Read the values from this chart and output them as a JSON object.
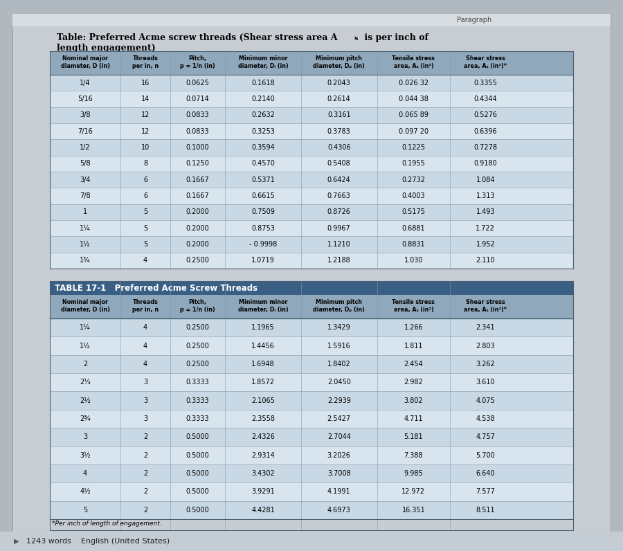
{
  "title1_line1": "Table: Preferred Acme screw threads (Shear stress area A",
  "title1_sub": "s",
  "title1_line2": " is per inch of",
  "title1_line3": "length engagement)",
  "table1_headers": [
    "Nominal major\ndiameter, D (in)",
    "Threads\nper in, n",
    "Pitch,\np = 1/n (in)",
    "Minimum minor\ndiameter, Dᵢ (in)",
    "Minimum pitch\ndiameter, Dₚ (in)",
    "Tensile stress\narea, Aₛ (in²)",
    "Shear stress\narea, Aₛ (in²)*"
  ],
  "table1_data": [
    [
      "1/4",
      "16",
      "0.0625",
      "0.1618",
      "0.2043",
      "0.026 32",
      "0.3355"
    ],
    [
      "5/16",
      "14",
      "0.0714",
      "0.2140",
      "0.2614",
      "0.044 38",
      "0.4344"
    ],
    [
      "3/8",
      "12",
      "0.0833",
      "0.2632",
      "0.3161",
      "0.065 89",
      "0.5276"
    ],
    [
      "7/16",
      "12",
      "0.0833",
      "0.3253",
      "0.3783",
      "0.097 20",
      "0.6396"
    ],
    [
      "1/2",
      "10",
      "0.1000",
      "0.3594",
      "0.4306",
      "0.1225",
      "0.7278"
    ],
    [
      "5/8",
      "8",
      "0.1250",
      "0.4570",
      "0.5408",
      "0.1955",
      "0.9180"
    ],
    [
      "3/4",
      "6",
      "0.1667",
      "0.5371",
      "0.6424",
      "0.2732",
      "1.084"
    ],
    [
      "7/8",
      "6",
      "0.1667",
      "0.6615",
      "0.7663",
      "0.4003",
      "1.313"
    ],
    [
      "1",
      "5",
      "0.2000",
      "0.7509",
      "0.8726",
      "0.5175",
      "1.493"
    ],
    [
      "1¼",
      "5",
      "0.2000",
      "0.8753",
      "0.9967",
      "0.6881",
      "1.722"
    ],
    [
      "1½",
      "5",
      "0.2000",
      "- 0.9998",
      "1.1210",
      "0.8831",
      "1.952"
    ],
    [
      "1¾",
      "4",
      "0.2500",
      "1.0719",
      "1.2188",
      "1.030",
      "2.110"
    ]
  ],
  "title2": "TABLE 17-1   Preferred Acme Screw Threads",
  "table2_headers": [
    "Nominal major\ndiameter, D (in)",
    "Threads\nper in, n",
    "Pitch,\np = 1/n (in)",
    "Minimum minor\ndiameter, Dᵢ (in)",
    "Minimum pitch\ndiameter, Dₚ (in)",
    "Tensile stress\narea, Aₛ (in²)",
    "Shear stress\narea, Aₛ (in²)*"
  ],
  "table2_data": [
    [
      "1¼",
      "4",
      "0.2500",
      "1.1965",
      "1.3429",
      "1.266",
      "2.341"
    ],
    [
      "1½",
      "4",
      "0.2500",
      "1.4456",
      "1.5916",
      "1.811",
      "2.803"
    ],
    [
      "2",
      "4",
      "0.2500",
      "1.6948",
      "1.8402",
      "2.454",
      "3.262"
    ],
    [
      "2¼",
      "3",
      "0.3333",
      "1.8572",
      "2.0450",
      "2.982",
      "3.610"
    ],
    [
      "2½",
      "3",
      "0.3333",
      "2.1065",
      "2.2939",
      "3.802",
      "4.075"
    ],
    [
      "2¾",
      "3",
      "0.3333",
      "2.3558",
      "2.5427",
      "4.711",
      "4.538"
    ],
    [
      "3",
      "2",
      "0.5000",
      "2.4326",
      "2.7044",
      "5.181",
      "4.757"
    ],
    [
      "3½",
      "2",
      "0.5000",
      "2.9314",
      "3.2026",
      "7.388",
      "5.700"
    ],
    [
      "4",
      "2",
      "0.5000",
      "3.4302",
      "3.7008",
      "9.985",
      "6.640"
    ],
    [
      "4½",
      "2",
      "0.5000",
      "3.9291",
      "4.1991",
      "12.972",
      "7.577"
    ],
    [
      "5",
      "2",
      "0.5000",
      "4.4281",
      "4.6973",
      "16.351",
      "8.511"
    ]
  ],
  "footnote": "*Per inch of length of engagement.",
  "page_bg": "#b0b8c0",
  "doc_bg": "#c8cdd4",
  "table1_bg": "#cdd8e2",
  "table1_header_bg": "#8fa8bb",
  "table2_title_bg": "#3a5f85",
  "table2_header_bg": "#8fa8bb",
  "row_even": "#c8d8e4",
  "row_odd": "#d8e4ee",
  "border_dark": "#4a6070",
  "border_light": "#8899aa",
  "bottom_bar_bg": "#c0c8d0",
  "top_bar_bg": "#d0d8e0"
}
